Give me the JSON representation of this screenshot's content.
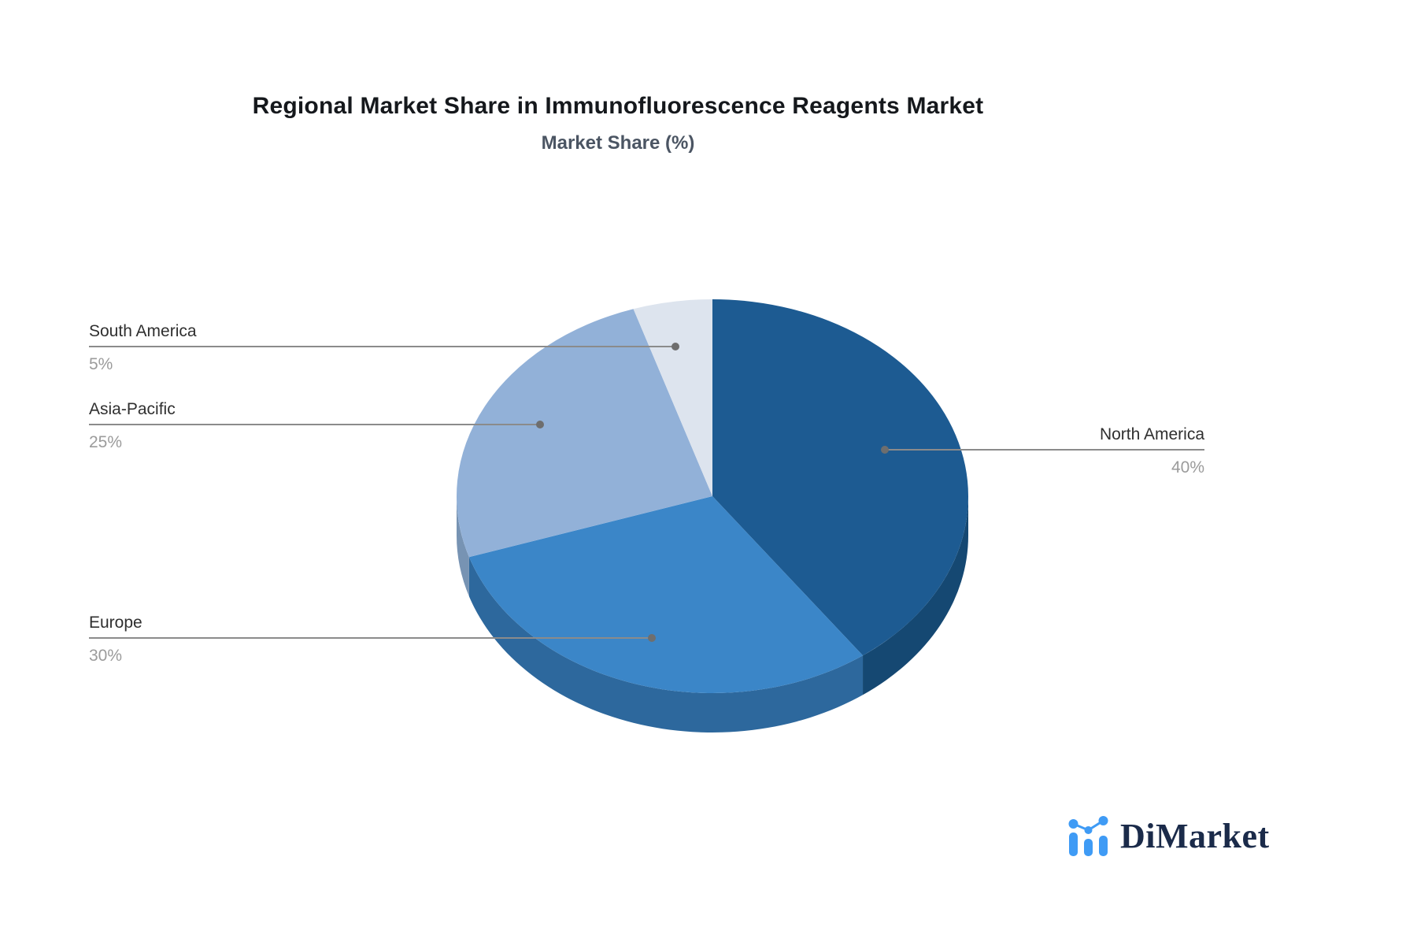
{
  "title": "Regional Market Share in Immunofluorescence Reagents Market",
  "subtitle": "Market Share (%)",
  "logo": {
    "text": "DiMarket",
    "icon": "bar-line-chart-icon",
    "icon_color": "#3f9bf5",
    "text_color": "#1b2b4a"
  },
  "chart_data": {
    "type": "pie",
    "style": "3d",
    "title": "Regional Market Share in Immunofluorescence Reagents Market",
    "subtitle": "Market Share (%)",
    "unit": "%",
    "direction": "clockwise",
    "start_angle": "12-oclock",
    "legend_position": "callout-labels",
    "leader_line_color": "#8b8b8b",
    "leader_dot_color": "#6e6e6e",
    "slices": [
      {
        "label": "North America",
        "value": 40,
        "display_value": "40%",
        "color": "#1d5b92",
        "side_color": "#154872"
      },
      {
        "label": "Europe",
        "value": 30,
        "display_value": "30%",
        "color": "#3b86c8",
        "side_color": "#2d689d"
      },
      {
        "label": "Asia-Pacific",
        "value": 25,
        "display_value": "25%",
        "color": "#92b1d8",
        "side_color": "#7793b3"
      },
      {
        "label": "South America",
        "value": 5,
        "display_value": "5%",
        "color": "#dde4ee",
        "side_color": "#b8c4d4"
      }
    ]
  }
}
